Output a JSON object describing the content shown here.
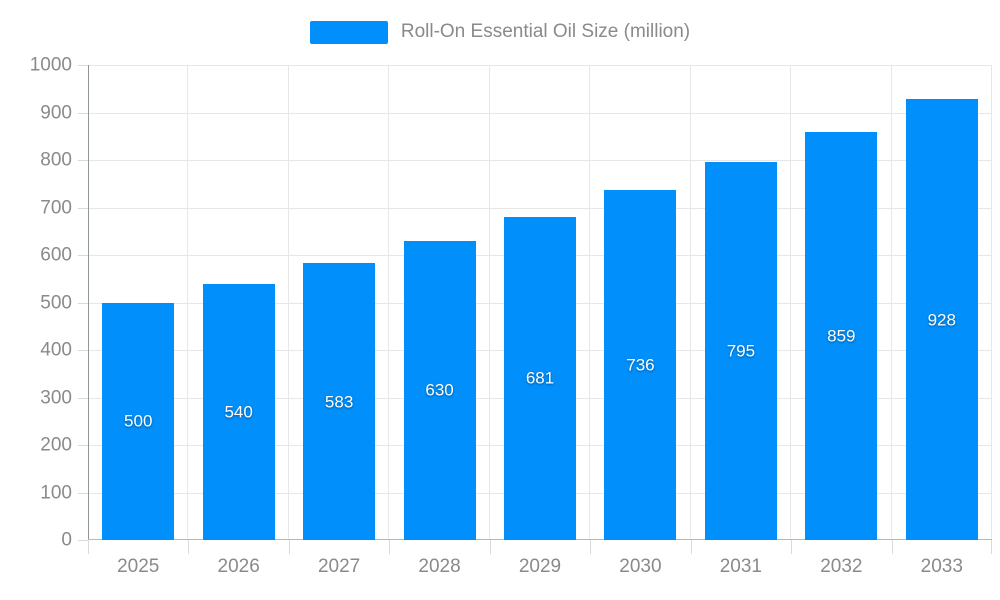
{
  "legend": {
    "label": "Roll-On Essential Oil Size (million)"
  },
  "chart_data": {
    "type": "bar",
    "categories": [
      "2025",
      "2026",
      "2027",
      "2028",
      "2029",
      "2030",
      "2031",
      "2032",
      "2033"
    ],
    "series": [
      {
        "name": "Roll-On Essential Oil Size (million)",
        "values": [
          500,
          540,
          583,
          630,
          681,
          736,
          795,
          859,
          928
        ]
      }
    ],
    "data_labels": [
      "500",
      "540",
      "583",
      "630",
      "681",
      "736",
      "795",
      "859",
      "928"
    ],
    "title": "",
    "xlabel": "",
    "ylabel": "",
    "ylim": [
      0,
      1000
    ],
    "yticks": [
      0,
      100,
      200,
      300,
      400,
      500,
      600,
      700,
      800,
      900,
      1000
    ],
    "grid": true,
    "legend_position": "top",
    "colors": {
      "bar": "#008FFB",
      "grid_line": "#e7e7e7",
      "y_axis_border": "#8f9699",
      "x_axis_border": "#b3b9bc",
      "tick": "#d8dadb",
      "axis_label": "#8a8a8a",
      "data_label": "#ffffff"
    }
  }
}
